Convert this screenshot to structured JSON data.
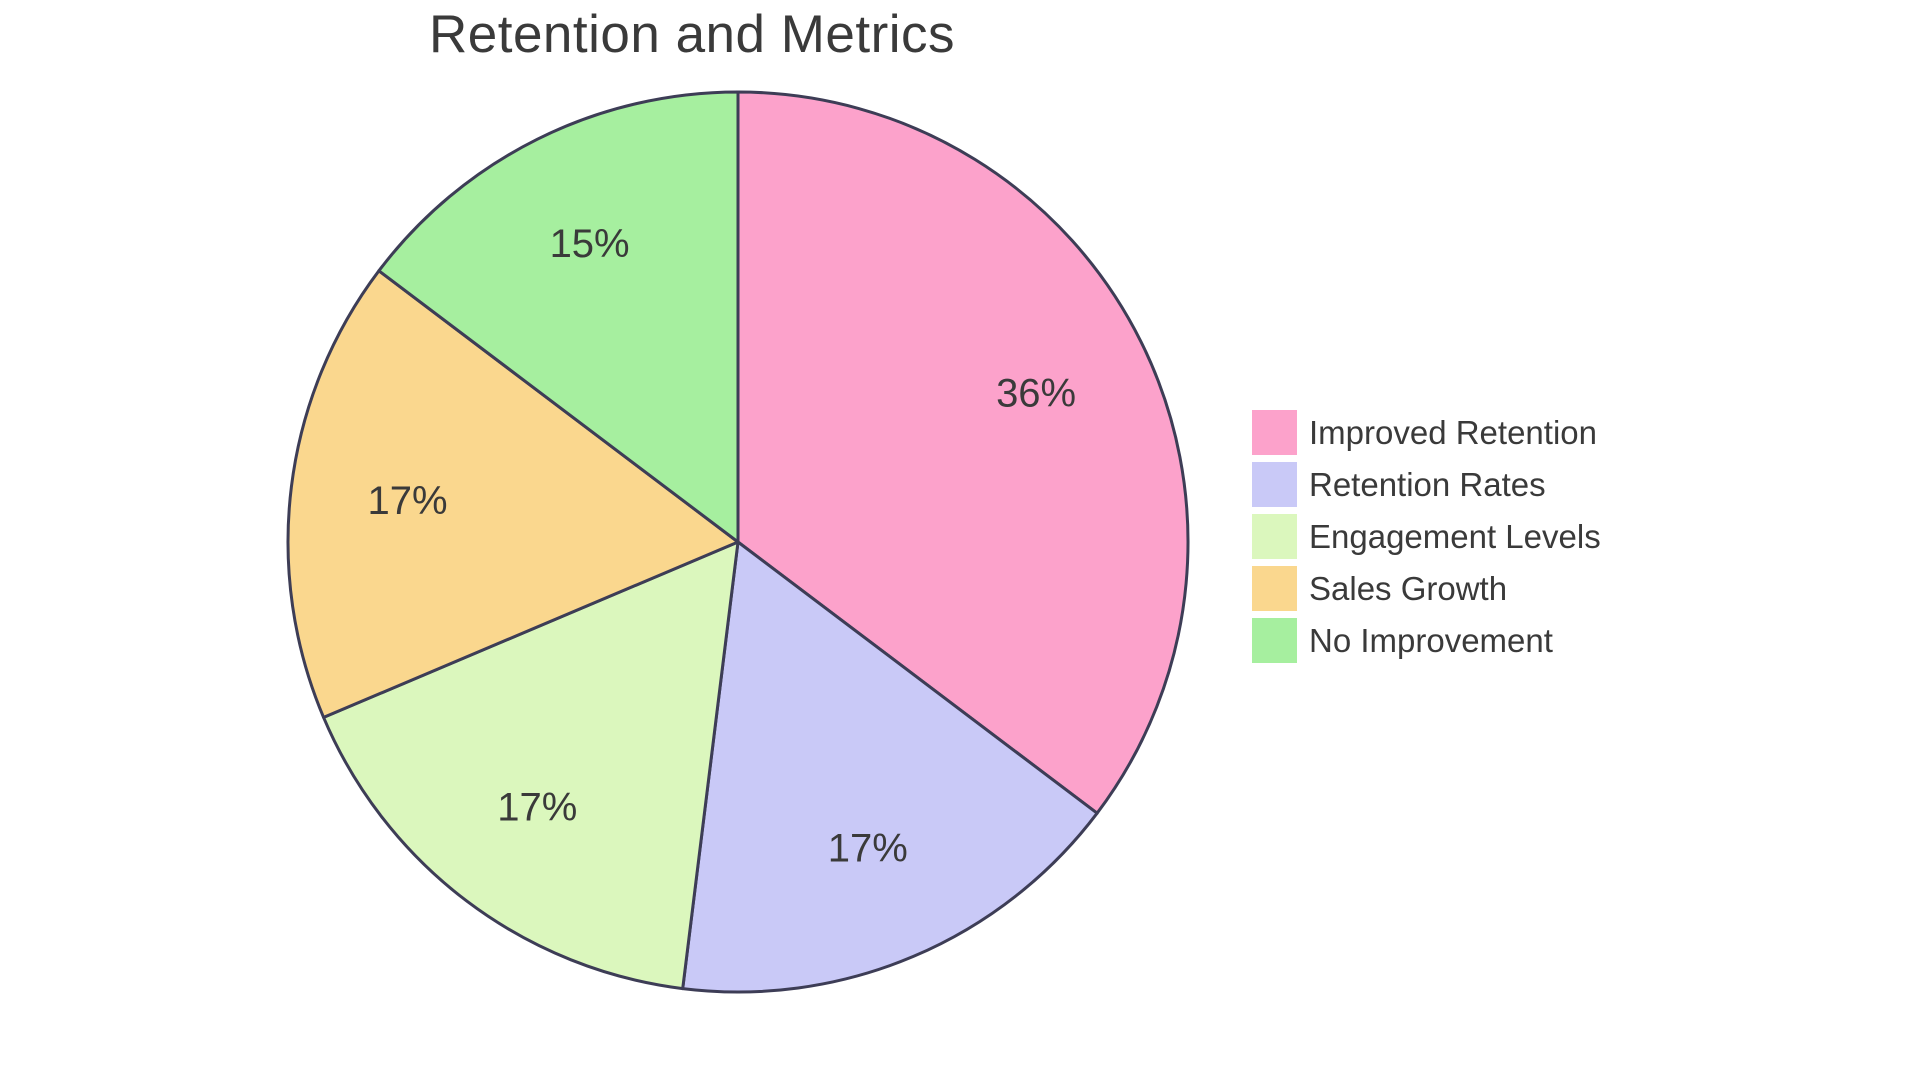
{
  "title": "Retention and Metrics",
  "chart_data": {
    "type": "pie",
    "title": "Retention and Metrics",
    "categories": [
      "Improved Retention",
      "Retention Rates",
      "Engagement Levels",
      "Sales Growth",
      "No Improvement"
    ],
    "values": [
      36,
      17,
      17,
      17,
      15
    ],
    "percent_labels": [
      "36%",
      "17%",
      "17%",
      "17%",
      "15%"
    ],
    "colors": [
      "#FCA2CB",
      "#C9C9F7",
      "#DBF7BD",
      "#FAD78E",
      "#A6EF9F"
    ],
    "edge_color": "#3D3D56",
    "text_color": "#3A3A3A",
    "start_angle": "top",
    "direction": "clockwise",
    "legend_position": "right",
    "grid": false
  }
}
